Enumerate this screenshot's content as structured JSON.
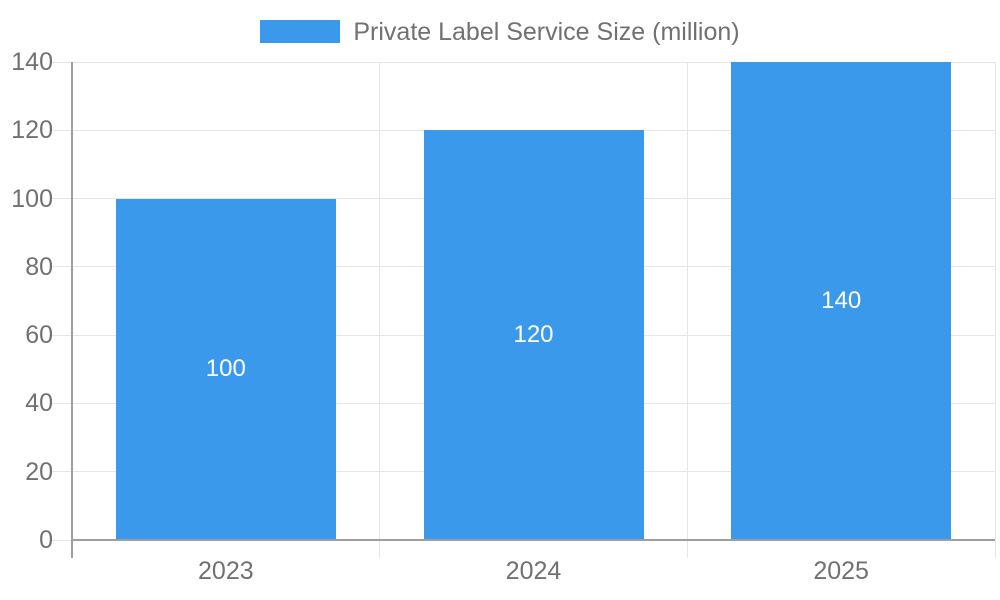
{
  "chart_data": {
    "type": "bar",
    "title": "Private Label Service Size (million)",
    "series_name": "Private Label Service Size (million)",
    "categories": [
      "2023",
      "2024",
      "2025"
    ],
    "values": [
      100,
      120,
      140
    ],
    "data_labels": [
      "100",
      "120",
      "140"
    ],
    "xlabel": "",
    "ylabel": "",
    "ylim": [
      0,
      140
    ],
    "yticks": [
      0,
      20,
      40,
      60,
      80,
      100,
      120,
      140
    ],
    "grid": true,
    "legend_position": "top",
    "colors": {
      "bar": "#3B99EC",
      "grid": "#E6E6E6",
      "axis": "#9E9E9E",
      "text": "#717171",
      "bar_label": "#FFFFFF",
      "background": "#FFFFFF"
    }
  }
}
